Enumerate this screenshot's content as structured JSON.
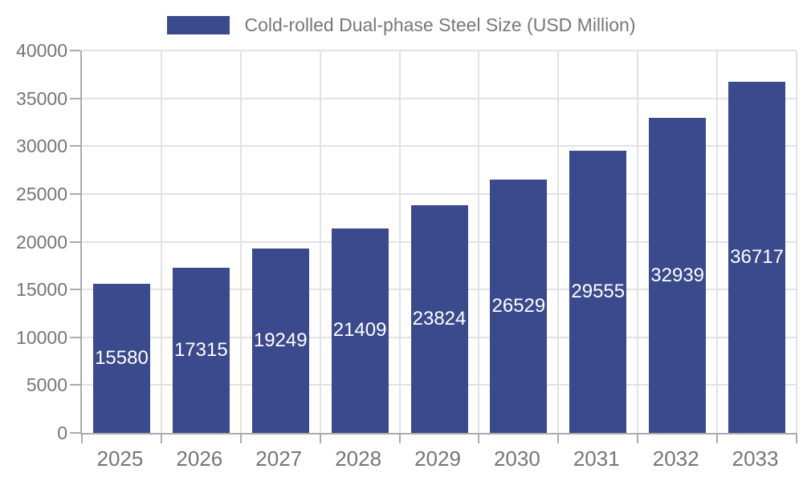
{
  "chart_data": {
    "type": "bar",
    "title": "Cold-rolled Dual-phase Steel Size (USD Million)",
    "categories": [
      "2025",
      "2026",
      "2027",
      "2028",
      "2029",
      "2030",
      "2031",
      "2032",
      "2033"
    ],
    "series": [
      {
        "name": "Cold-rolled Dual-phase Steel Size (USD Million)",
        "values": [
          15580,
          17315,
          19249,
          21409,
          23824,
          26529,
          29555,
          32939,
          36717
        ]
      }
    ],
    "value_labels_position": "inside-center",
    "xlabel": "",
    "ylabel": "",
    "ylim": [
      0,
      40000
    ],
    "yticks": [
      0,
      5000,
      10000,
      15000,
      20000,
      25000,
      30000,
      35000,
      40000
    ],
    "grid": "horizontal and vertical, category boundaries",
    "legend_position": "top-center",
    "colors": {
      "bar": "#3B4A8C",
      "grid": "#e2e2e4",
      "axis": "#aaaaaa",
      "tick_label": "#757575",
      "legend_text": "#777777",
      "value_label": "#ffffff",
      "background": "#ffffff"
    }
  }
}
